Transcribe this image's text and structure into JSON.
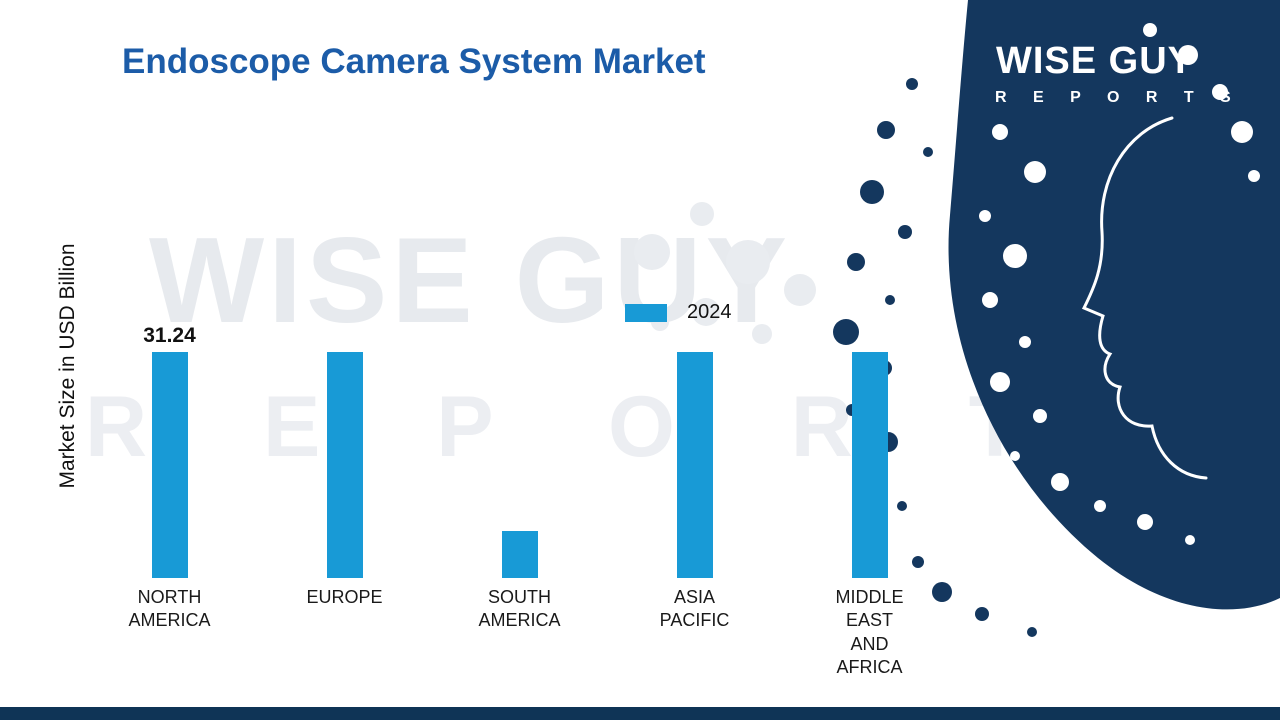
{
  "title": "Endoscope Camera System Market",
  "ylabel": "Market Size in USD Billion",
  "legend": {
    "label": "2024"
  },
  "watermark": {
    "line1": "WISE GUY",
    "line2": "R E P O R T S"
  },
  "logo": {
    "line1": "WISE GUY",
    "line2": "R E P O R T S"
  },
  "colors": {
    "bar": "#189ad6",
    "title": "#1c5ca8",
    "navy": "#14375e",
    "footer": "#0f3456",
    "watermark": "#e7eaee"
  },
  "chart_data": {
    "type": "bar",
    "title": "Endoscope Camera System Market",
    "xlabel": "",
    "ylabel": "Market Size in USD Billion",
    "categories": [
      "NORTH\nAMERICA",
      "EUROPE",
      "SOUTH\nAMERICA",
      "ASIA\nPACIFIC",
      "MIDDLE\nEAST\nAND\nAFRICA"
    ],
    "values": [
      31.24,
      31.24,
      6.5,
      31.24,
      31.24
    ],
    "value_labels": [
      "31.24",
      "",
      "",
      "",
      ""
    ],
    "ylim": [
      0,
      31.24
    ],
    "unit": "USD Billion",
    "legend": [
      "2024"
    ],
    "legend_position": "top-center",
    "grid": false
  }
}
